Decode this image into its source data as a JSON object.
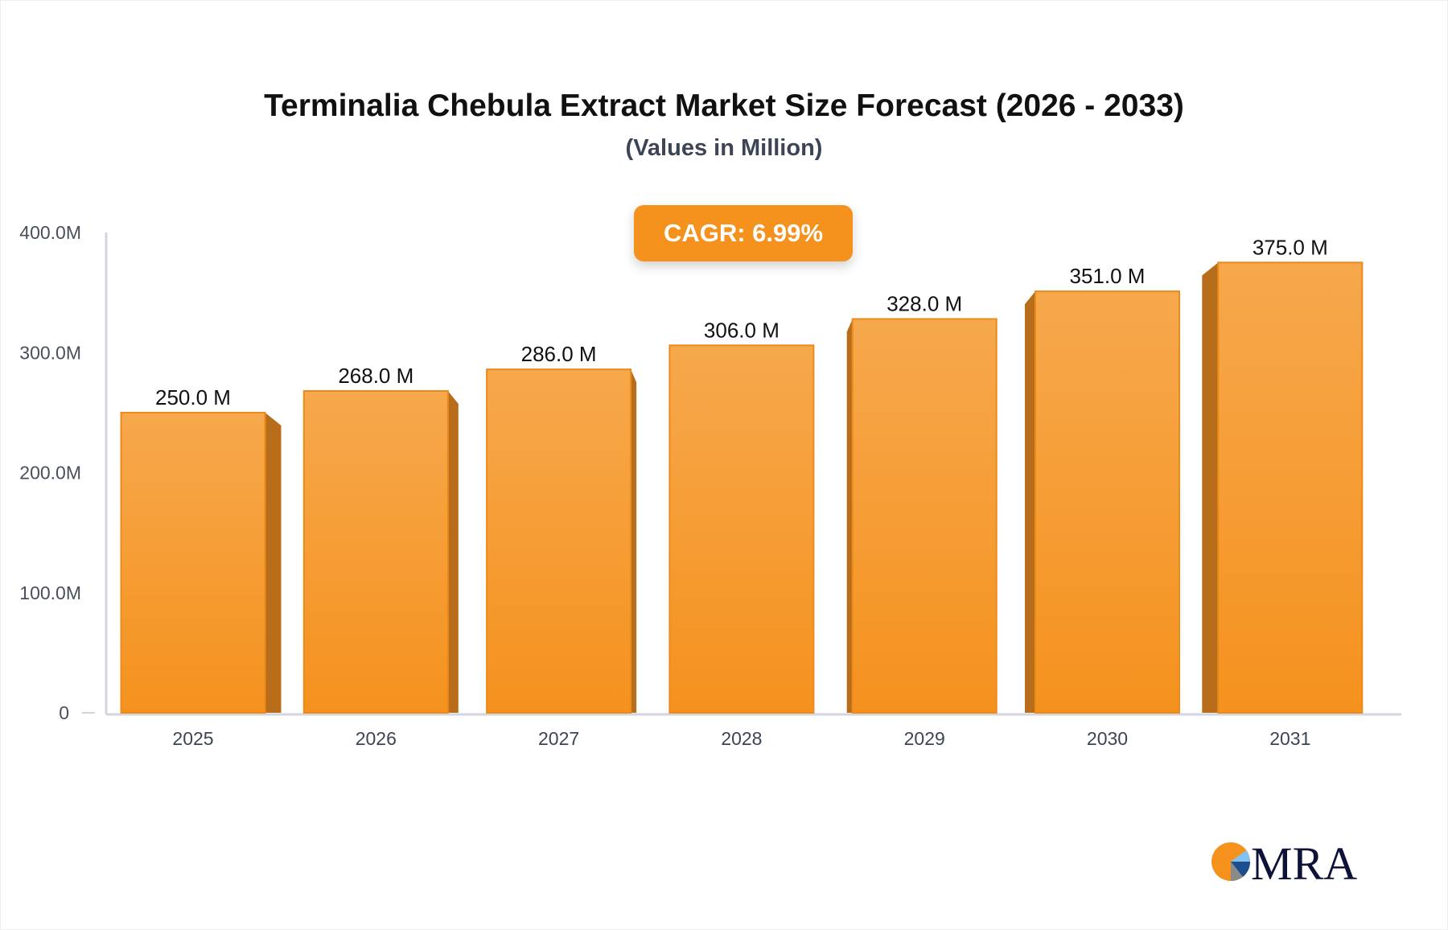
{
  "chart_data": {
    "type": "bar",
    "title": "Terminalia Chebula Extract Market Size Forecast (2026 - 2033)",
    "subtitle": "(Values in Million)",
    "annotation": "CAGR: 6.99%",
    "categories": [
      "2025",
      "2026",
      "2027",
      "2028",
      "2029",
      "2030",
      "2031"
    ],
    "values": [
      250.0,
      268.0,
      286.0,
      306.0,
      328.0,
      351.0,
      375.0
    ],
    "data_labels": [
      "250.0 M",
      "268.0 M",
      "286.0 M",
      "306.0 M",
      "328.0 M",
      "351.0 M",
      "375.0 M"
    ],
    "y_ticks": [
      0,
      100,
      200,
      300,
      400
    ],
    "y_tick_labels": [
      "0",
      "100.0M",
      "200.0M",
      "300.0M",
      "400.0M"
    ],
    "ylim": [
      0,
      400
    ],
    "xlabel": "",
    "ylabel": "",
    "grid": false,
    "bar_color": "#f5921e",
    "bar_side_color": "#b86d1a"
  },
  "logo": {
    "text": "MRA"
  }
}
